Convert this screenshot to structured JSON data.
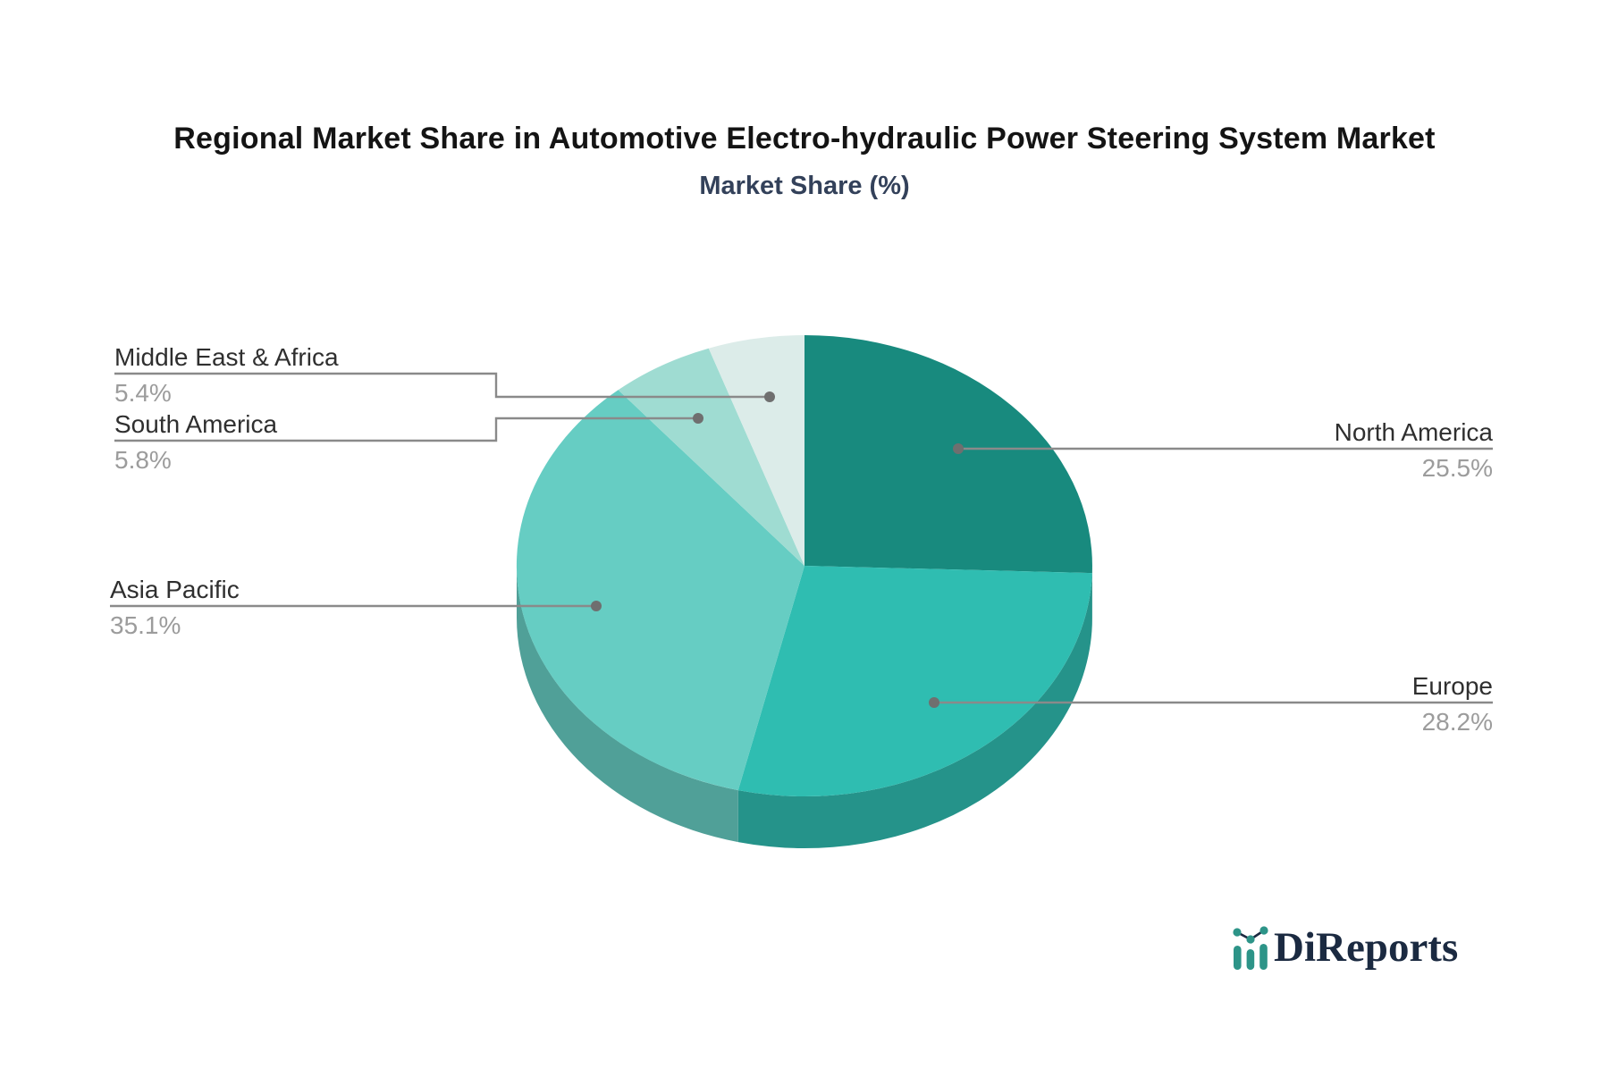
{
  "title": "Regional Market Share in Automotive Electro-hydraulic Power Steering System Market",
  "subtitle": "Market Share (%)",
  "logo": {
    "text": "DiReports"
  },
  "colors": {
    "label_text": "#2f2f2f",
    "pct_text": "#9c9c9c",
    "connector": "#8a8a8a",
    "dot": "#6f6f6f",
    "logo_navy": "#1b2a41",
    "logo_teal": "#2d9488"
  },
  "chart_data": {
    "type": "pie",
    "title": "Regional Market Share in Automotive Electro-hydraulic Power Steering System Market",
    "subtitle": "Market Share (%)",
    "unit": "%",
    "style": "3d-pie",
    "start_angle_deg": 0,
    "direction": "clockwise",
    "legend_position": "callouts",
    "slices": [
      {
        "label": "North America",
        "value": 25.5,
        "display": "25.5%",
        "color": "#188a7e"
      },
      {
        "label": "Europe",
        "value": 28.2,
        "display": "28.2%",
        "color": "#2fbdb1"
      },
      {
        "label": "Asia Pacific",
        "value": 35.1,
        "display": "35.1%",
        "color": "#66cdc3"
      },
      {
        "label": "South America",
        "value": 5.8,
        "display": "5.8%",
        "color": "#9fdcd2"
      },
      {
        "label": "Middle East & Africa",
        "value": 5.4,
        "display": "5.4%",
        "color": "#dcece9"
      }
    ]
  }
}
